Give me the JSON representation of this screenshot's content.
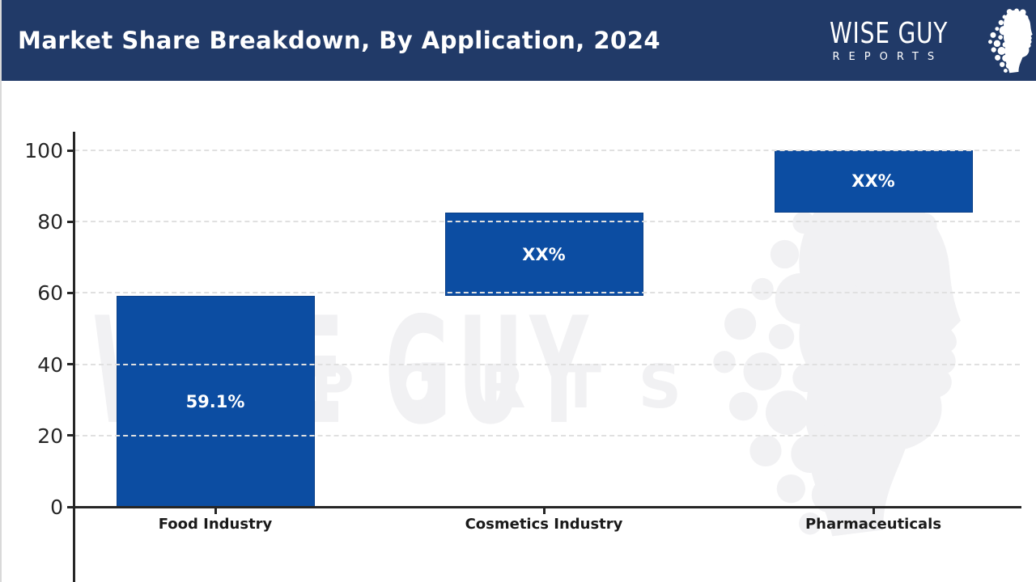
{
  "header": {
    "title": "Market Share Breakdown, By Application, 2024",
    "logo": {
      "wordmark": "WISE GUY",
      "subtext": "REPORTS"
    }
  },
  "watermark": {
    "wordmark": "WISE GUY",
    "subtext": "REPORTS"
  },
  "chart_data": {
    "type": "bar",
    "variant": "floating-segment-breakdown",
    "title": "Market Share Breakdown, By Application, 2024",
    "categories": [
      "Food Industry",
      "Cosmetics Industry",
      "Pharmaceuticals"
    ],
    "segments": [
      {
        "category": "Food Industry",
        "start": 0,
        "end": 59.1,
        "label": "59.1%"
      },
      {
        "category": "Cosmetics Industry",
        "start": 59.1,
        "end": 82.6,
        "label": "XX%"
      },
      {
        "category": "Pharmaceuticals",
        "start": 82.6,
        "end": 100,
        "label": "XX%"
      }
    ],
    "y_ticks": [
      0,
      20,
      40,
      60,
      80,
      100
    ],
    "ylim": [
      0,
      105
    ],
    "xlabel": "",
    "ylabel": "",
    "grid": "horizontal-dashed",
    "legend": "none",
    "bar_color": "#0c4da2",
    "bar_label_color": "#ffffff",
    "colors": {
      "header_bg": "#213a68",
      "grid": "#e0e0e0",
      "axis": "#262626",
      "watermark": "#f1f1f3",
      "page_border": "#d9d9d9"
    }
  }
}
